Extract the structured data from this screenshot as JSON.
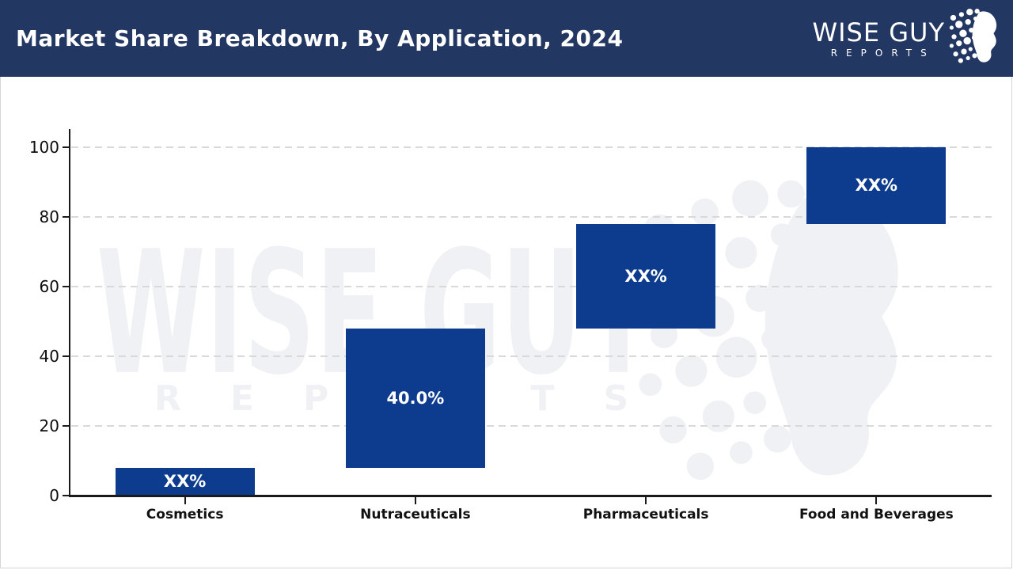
{
  "header": {
    "title": "Market Share Breakdown, By Application, 2024",
    "bg_color": "#233763",
    "logo": {
      "line1": "WISE GUY",
      "line2": "REPORTS"
    }
  },
  "watermark": {
    "line1": "WISE GUY",
    "line2": "REPORTS"
  },
  "colors": {
    "header_bg": "#233763",
    "bar_blue": "#0d3c8e",
    "bar_label": "#ffffff",
    "gridline": "#d9d9d9",
    "axis": "#1a1a1a",
    "watermark": "#f0f1f4"
  },
  "chart_data": {
    "type": "bar",
    "subtype": "waterfall",
    "title": "Market Share Breakdown, By Application, 2024",
    "categories": [
      "Cosmetics",
      "Nutraceuticals",
      "Pharmaceuticals",
      "Food and Beverages"
    ],
    "segments": [
      {
        "category": "Cosmetics",
        "start": 0,
        "end": 8,
        "label": "XX%"
      },
      {
        "category": "Nutraceuticals",
        "start": 8,
        "end": 48,
        "label": "40.0%"
      },
      {
        "category": "Pharmaceuticals",
        "start": 48,
        "end": 78,
        "label": "XX%"
      },
      {
        "category": "Food and Beverages",
        "start": 78,
        "end": 100,
        "label": "XX%"
      }
    ],
    "yticks": [
      0,
      20,
      40,
      60,
      80,
      100
    ],
    "ylim": [
      0,
      100
    ],
    "xlabel": "",
    "ylabel": "",
    "legend": null,
    "grid": "horizontal-dashed",
    "bar_color": "#0d3c8e"
  }
}
